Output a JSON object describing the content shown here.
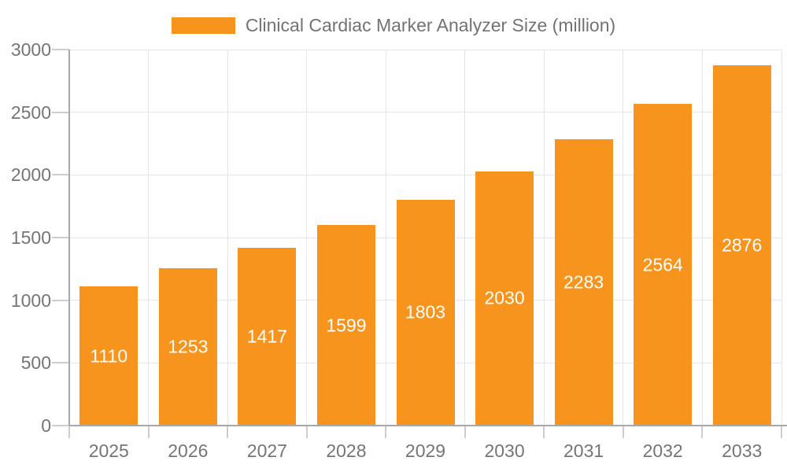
{
  "chart_data": {
    "type": "bar",
    "title": "Clinical Cardiac Marker Analyzer Size (million)",
    "categories": [
      "2025",
      "2026",
      "2027",
      "2028",
      "2029",
      "2030",
      "2031",
      "2032",
      "2033"
    ],
    "values": [
      1110,
      1253,
      1417,
      1599,
      1803,
      2030,
      2283,
      2564,
      2876
    ],
    "xlabel": "",
    "ylabel": "",
    "ylim": [
      0,
      3000
    ],
    "yticks": [
      0,
      500,
      1000,
      1500,
      2000,
      2500,
      3000
    ],
    "grid": true,
    "legend_position": "top",
    "value_labels": "inside-center",
    "colors": {
      "bar": "#F7941E",
      "value_label": "#FFFFFF",
      "axis_text": "#757575",
      "legend_text": "#737373",
      "grid": "#E6E6E6",
      "axis_line": "#A8A8A8",
      "tick": "#CDCDCD"
    }
  }
}
